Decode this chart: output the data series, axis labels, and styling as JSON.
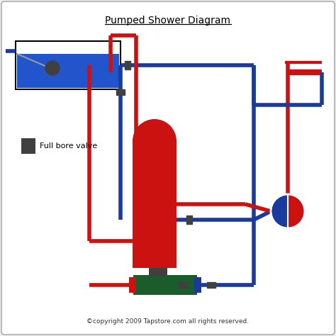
{
  "title": "Pumped Shower Diagram",
  "copyright": "©copyright 2009 Tapstore.com all rights reserved.",
  "bg_color": "#f0f0f0",
  "blue": "#1a3a9e",
  "red": "#cc1111",
  "dark_green": "#1a5c2a",
  "dark_gray": "#404040",
  "pipe_lw": 4
}
